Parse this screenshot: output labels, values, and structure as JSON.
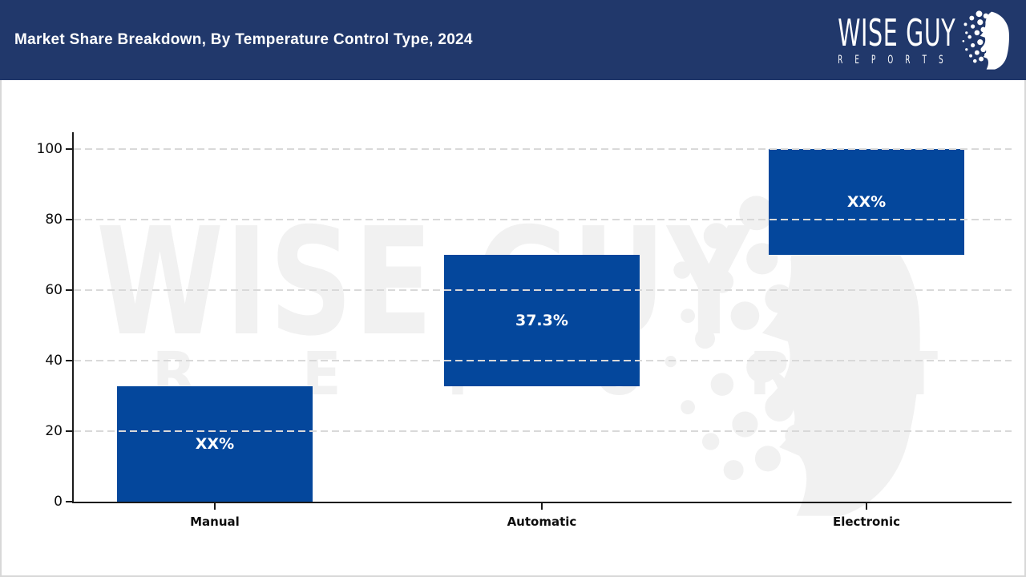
{
  "header": {
    "title": "Market Share Breakdown, By Temperature Control Type, 2024",
    "logo": {
      "line1": "WISE GUY",
      "line2": "R E P O R T S"
    }
  },
  "watermark": {
    "line1": "WISE GUY",
    "line2": "R E P O R T S"
  },
  "colors": {
    "header_bg": "#21386b",
    "bar": "#04479c",
    "bar_label": "#ffffff",
    "axis": "#1a1a1a",
    "grid": "#d9d9d9",
    "tick_label": "#0d0d0d",
    "watermark": "#f1f1f1"
  },
  "chart_data": {
    "type": "bar",
    "variant": "floating-segment-waterfall",
    "title": "Market Share Breakdown, By Temperature Control Type, 2024",
    "categories": [
      "Manual",
      "Automatic",
      "Electronic"
    ],
    "bars": [
      {
        "category": "Manual",
        "start": 0,
        "end": 32.7,
        "label": "XX%"
      },
      {
        "category": "Automatic",
        "start": 32.7,
        "end": 70,
        "label": "37.3%"
      },
      {
        "category": "Electronic",
        "start": 70,
        "end": 100,
        "label": "XX%"
      }
    ],
    "xlabel": "",
    "ylabel": "",
    "yticks": [
      0,
      20,
      40,
      60,
      80,
      100
    ],
    "ylim": [
      0,
      104.8
    ],
    "grid": "horizontal dashed",
    "legend": "none"
  }
}
